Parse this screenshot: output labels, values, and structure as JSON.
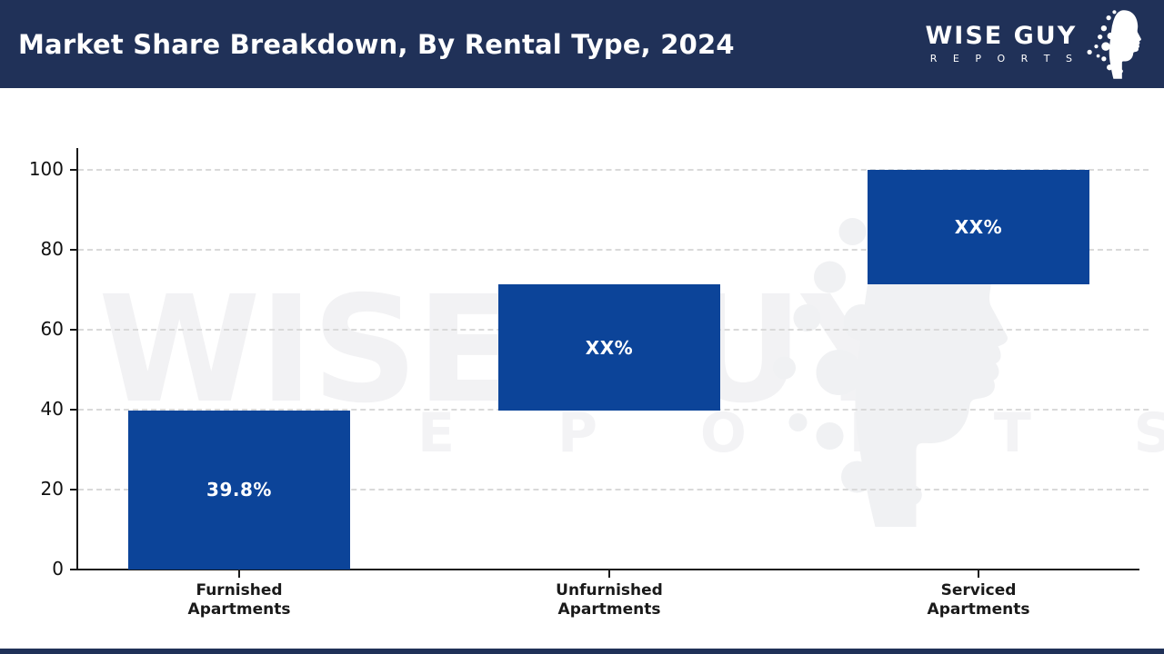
{
  "header": {
    "title": "Market Share Breakdown, By Rental Type, 2024",
    "logo_line1": "WISE GUY",
    "logo_line2": "R E P O R T S"
  },
  "watermark": {
    "line1": "WISE GUY",
    "line2": "R E P O R T S"
  },
  "chart_data": {
    "type": "bar",
    "subtype": "waterfall-floating-bars",
    "title": "Market Share Breakdown, By Rental Type, 2024",
    "categories": [
      "Furnished Apartments",
      "Unfurnished Apartments",
      "Serviced Apartments"
    ],
    "segments": [
      {
        "category": "Furnished Apartments",
        "start": 0,
        "end": 39.8,
        "label": "39.8%"
      },
      {
        "category": "Unfurnished Apartments",
        "start": 39.8,
        "end": 71.3,
        "label": "XX%"
      },
      {
        "category": "Serviced Apartments",
        "start": 71.3,
        "end": 100,
        "label": "XX%"
      }
    ],
    "xlabel": "",
    "ylabel": "",
    "ylim": [
      0,
      100
    ],
    "yticks": [
      0,
      20,
      40,
      60,
      80,
      100
    ],
    "grid": "horizontal-dashed",
    "legend": "none",
    "colors": {
      "bar": "#0c4499",
      "bar_label": "#ffffff",
      "axis": "#1a1a1a",
      "gridline": "#d9d9d9",
      "header_bg": "#203158",
      "footer_bg": "#203158"
    }
  }
}
